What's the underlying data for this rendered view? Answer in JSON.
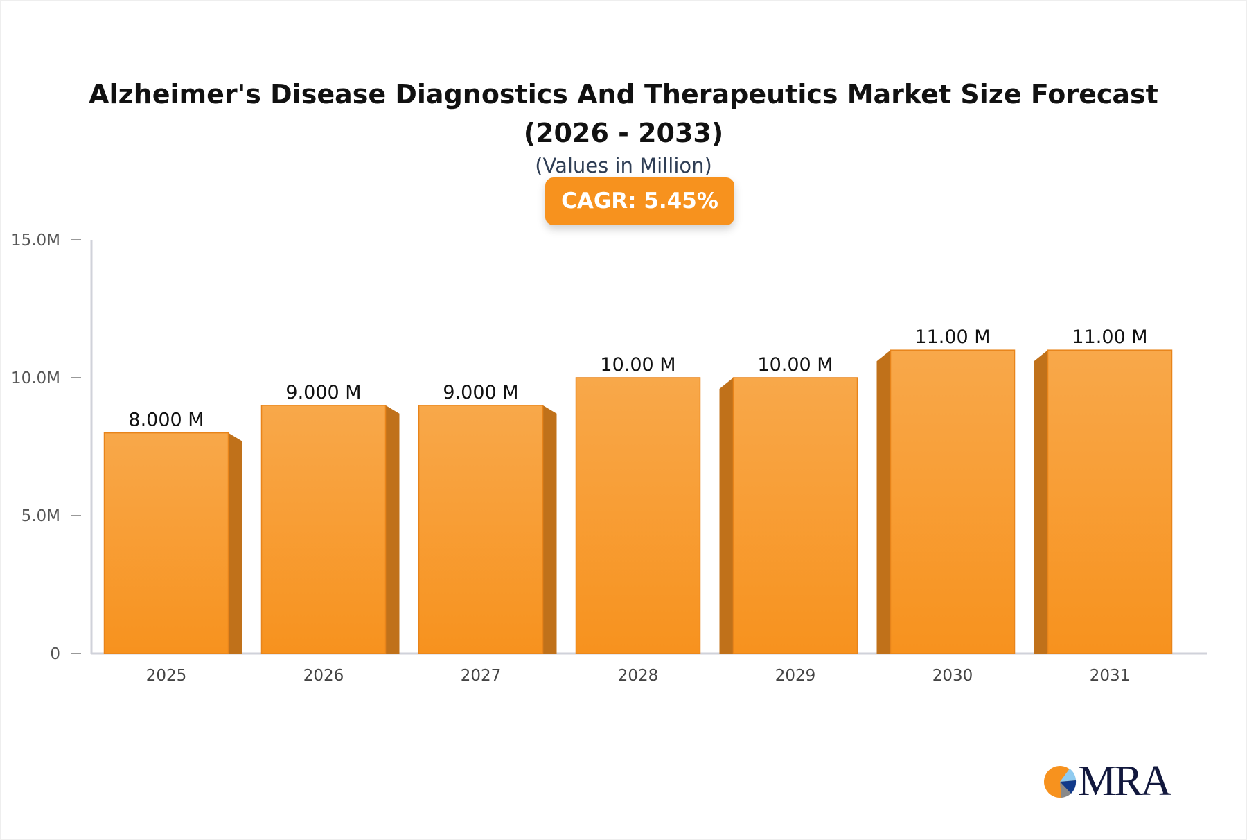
{
  "chart_data": {
    "type": "bar",
    "title": "Alzheimer's Disease Diagnostics And Therapeutics Market Size Forecast (2026 - 2033)",
    "subtitle": "(Values in Million)",
    "badge": "CAGR: 5.45%",
    "categories": [
      "2025",
      "2026",
      "2027",
      "2028",
      "2029",
      "2030",
      "2031"
    ],
    "values": [
      8,
      9,
      9,
      10,
      10,
      11,
      11
    ],
    "data_labels": [
      "8.000 M",
      "9.000 M",
      "9.000 M",
      "10.00 M",
      "10.00 M",
      "11.00 M",
      "11.00 M"
    ],
    "yticks": [
      0,
      5,
      10,
      15
    ],
    "ytick_labels": [
      "0",
      "5.0M",
      "10.0M",
      "15.0M"
    ],
    "ylim": [
      0,
      15
    ],
    "grid": false,
    "colors": {
      "bar_top": "#f8a84a",
      "bar_bottom": "#f7921e",
      "bar_side": "#c0711a",
      "axis": "#d0d2da"
    }
  },
  "logo": {
    "text": "MRA"
  }
}
